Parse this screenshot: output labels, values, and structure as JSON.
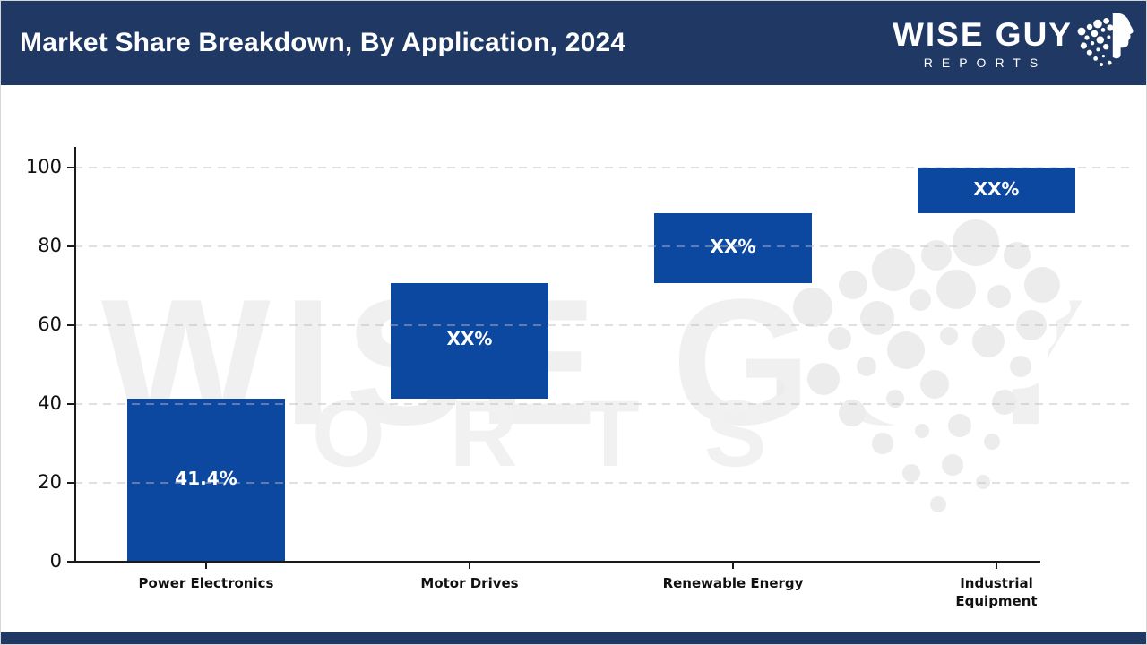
{
  "header": {
    "title": "Market Share Breakdown, By Application, 2024",
    "bg_color": "#1f3864",
    "logo": {
      "line1": "WISE GUY",
      "line2": "REPORTS"
    }
  },
  "watermark": {
    "line1": "WISE GUY",
    "line2": "PORTS"
  },
  "footer": {
    "bg_color": "#1f3864"
  },
  "chart_data": {
    "type": "bar",
    "style": "floating-waterfall",
    "title": "Market Share Breakdown, By Application, 2024",
    "categories": [
      "Power Electronics",
      "Motor Drives",
      "Renewable Energy",
      "Industrial\nEquipment"
    ],
    "bars": [
      {
        "category": "Power Electronics",
        "start": 0,
        "end": 41.4,
        "label": "41.4%"
      },
      {
        "category": "Motor Drives",
        "start": 41.4,
        "end": 70.7,
        "label": "XX%"
      },
      {
        "category": "Renewable Energy",
        "start": 70.7,
        "end": 88.4,
        "label": "XX%"
      },
      {
        "category": "Industrial Equipment",
        "start": 88.4,
        "end": 100,
        "label": "XX%"
      }
    ],
    "bar_color": "#0c47a0",
    "label_color": "#ffffff",
    "yticks": [
      0,
      20,
      40,
      60,
      80,
      100
    ],
    "ylim": [
      0,
      105
    ],
    "xlabel": "",
    "ylabel": "",
    "grid": "horizontal-dashed",
    "legend": "none"
  }
}
